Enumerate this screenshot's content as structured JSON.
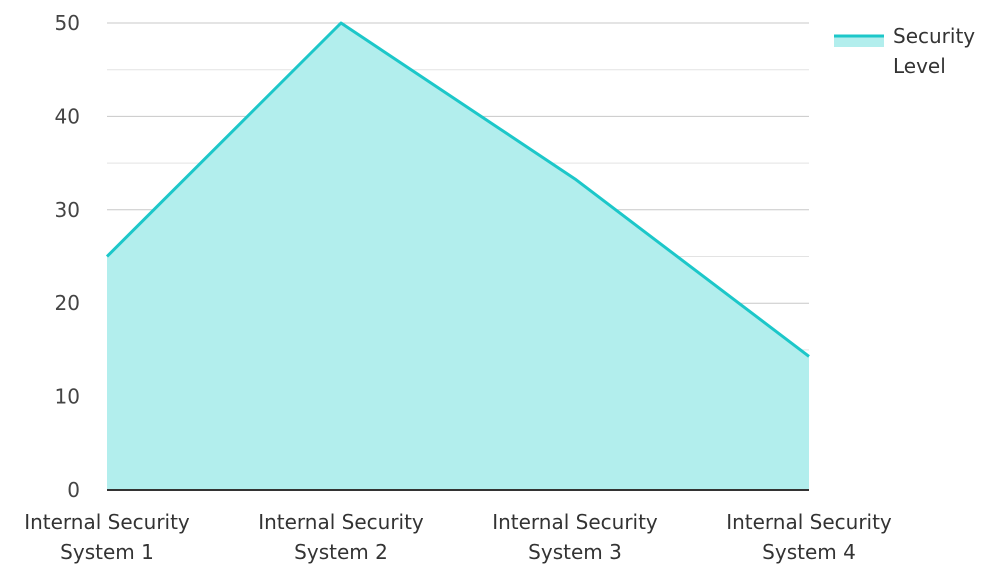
{
  "chart_data": {
    "type": "area",
    "categories": [
      "Internal Security System 1",
      "Internal Security System 2",
      "Internal Security System 3",
      "Internal Security System 4"
    ],
    "category_label_lines": [
      [
        "Internal Security",
        "System 1"
      ],
      [
        "Internal Security",
        "System 2"
      ],
      [
        "Internal Security",
        "System 3"
      ],
      [
        "Internal Security",
        "System 4"
      ]
    ],
    "series": [
      {
        "name": "Security Level",
        "name_lines": [
          "Security",
          "Level"
        ],
        "values": [
          25,
          50,
          33.3,
          14.3
        ]
      }
    ],
    "ylim": [
      0,
      50
    ],
    "yticks": [
      0,
      10,
      20,
      30,
      40,
      50
    ],
    "grid": true,
    "legend_position": "top-right",
    "colors": {
      "line": "#1cc7c9",
      "fill": "#b2eeed",
      "grid": "#c8c8c8",
      "axis": "#333333"
    }
  }
}
